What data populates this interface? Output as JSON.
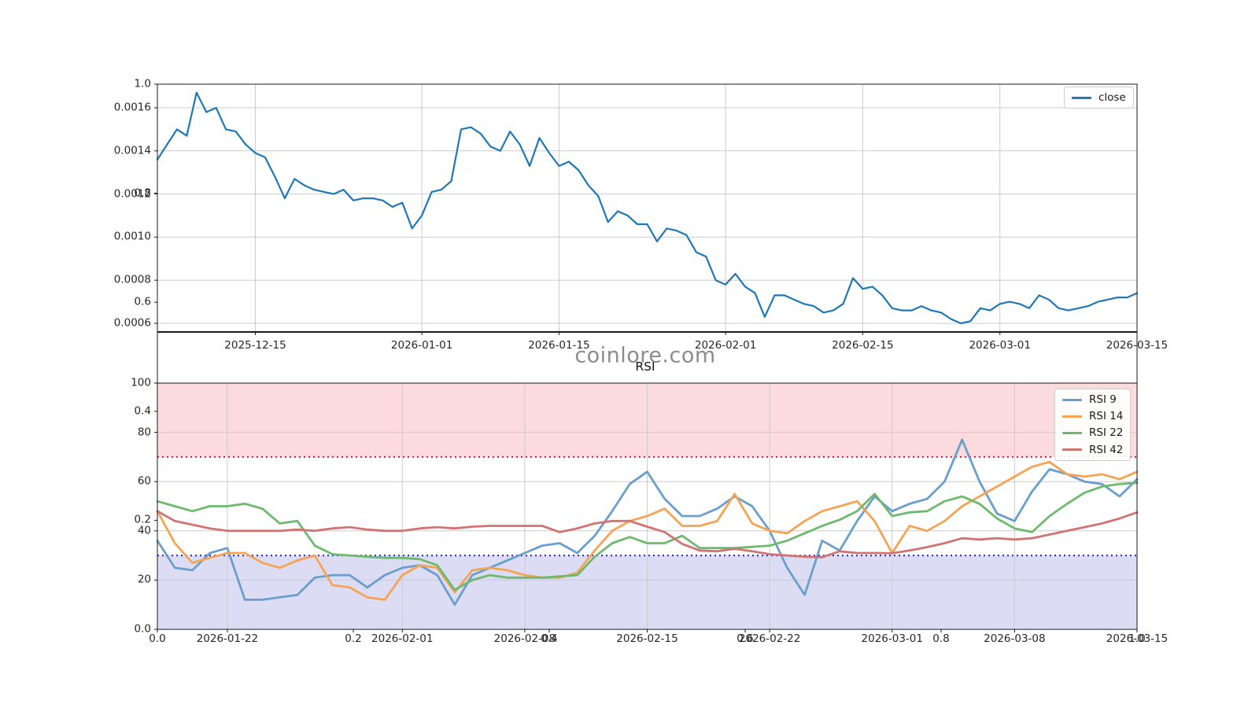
{
  "watermark": {
    "text": "coinlore.com"
  },
  "colors": {
    "close": "#1f77b4",
    "rsi9": "#6a9ecb",
    "rsi14": "#f5a455",
    "rsi22": "#6eb96e",
    "rsi42": "#d27373",
    "overbought_band": "#fbdbde",
    "oversold_band": "#dcdcf4",
    "overbought_line": "#dc143c",
    "oversold_line": "#2222dd",
    "grid": "#cccccc",
    "spine": "#1a1a1a"
  },
  "chart_data": [
    {
      "type": "line",
      "name": "price",
      "x_start": "2025-12-05",
      "x_end": "2026-03-15",
      "x_ticks": [
        {
          "label": "2025-12-15",
          "day": 10
        },
        {
          "label": "2026-01-01",
          "day": 27
        },
        {
          "label": "2026-01-15",
          "day": 41
        },
        {
          "label": "2026-02-01",
          "day": 58
        },
        {
          "label": "2026-02-15",
          "day": 72
        },
        {
          "label": "2026-03-01",
          "day": 86
        },
        {
          "label": "2026-03-15",
          "day": 100
        }
      ],
      "y_ticks": [
        {
          "label": "0.0016",
          "value": 0.0016
        },
        {
          "label": "0.0014",
          "value": 0.0014
        },
        {
          "label": "0.0012",
          "value": 0.0012
        },
        {
          "label": "0.0010",
          "value": 0.001
        },
        {
          "label": "0.0008",
          "value": 0.0008
        },
        {
          "label": "0.0006",
          "value": 0.0006
        }
      ],
      "ylim": [
        0.000552,
        0.001715
      ],
      "grid": true,
      "legend_position": "upper right",
      "series": [
        {
          "name": "close",
          "color": "#1f77b4",
          "values": [
            0.00136,
            0.00143,
            0.0015,
            0.00147,
            0.00167,
            0.00158,
            0.0016,
            0.0015,
            0.00149,
            0.00143,
            0.00139,
            0.00137,
            0.00128,
            0.00118,
            0.00127,
            0.00124,
            0.00122,
            0.00121,
            0.0012,
            0.00122,
            0.00117,
            0.00118,
            0.00118,
            0.00117,
            0.00114,
            0.00116,
            0.00104,
            0.0011,
            0.00121,
            0.00122,
            0.00126,
            0.0015,
            0.00151,
            0.00148,
            0.00142,
            0.0014,
            0.00149,
            0.00143,
            0.00133,
            0.00146,
            0.00139,
            0.00133,
            0.00135,
            0.00131,
            0.00124,
            0.00119,
            0.00107,
            0.00112,
            0.0011,
            0.00106,
            0.00106,
            0.00098,
            0.00104,
            0.00103,
            0.00101,
            0.00093,
            0.00091,
            0.0008,
            0.00078,
            0.00083,
            0.00077,
            0.00074,
            0.00063,
            0.00073,
            0.00073,
            0.00071,
            0.00069,
            0.00068,
            0.00065,
            0.00066,
            0.00069,
            0.00081,
            0.00076,
            0.00077,
            0.00073,
            0.00067,
            0.00066,
            0.00066,
            0.00068,
            0.00066,
            0.00065,
            0.00062,
            0.0006,
            0.00061,
            0.00067,
            0.00066,
            0.00069,
            0.0007,
            0.00069,
            0.00067,
            0.00073,
            0.00071,
            0.00067,
            0.00066,
            0.00067,
            0.00068,
            0.0007,
            0.00071,
            0.00072,
            0.00072,
            0.00074
          ]
        }
      ]
    },
    {
      "type": "line",
      "name": "rsi",
      "title": "RSI",
      "x_start": "2026-01-18",
      "x_end": "2026-03-15",
      "x_ticks": [
        {
          "label": "2026-01-22",
          "day": 4
        },
        {
          "label": "2026-02-01",
          "day": 14
        },
        {
          "label": "2026-02-08",
          "day": 21
        },
        {
          "label": "2026-02-15",
          "day": 28
        },
        {
          "label": "2026-02-22",
          "day": 35
        },
        {
          "label": "2026-03-01",
          "day": 42
        },
        {
          "label": "2026-03-08",
          "day": 49
        },
        {
          "label": "2026-03-15",
          "day": 56
        }
      ],
      "y_ticks": [
        {
          "label": "100",
          "value": 100
        },
        {
          "label": "80",
          "value": 80
        },
        {
          "label": "60",
          "value": 60
        },
        {
          "label": "40",
          "value": 40
        },
        {
          "label": "20",
          "value": 20
        }
      ],
      "ylim": [
        0,
        100
      ],
      "grid": true,
      "legend_position": "upper right",
      "bands": [
        {
          "from": 70,
          "to": 100,
          "color": "#fbdbde",
          "name": "overbought"
        },
        {
          "from": 0,
          "to": 30,
          "color": "#dcdcf4",
          "name": "oversold"
        }
      ],
      "thresholds": [
        {
          "value": 70,
          "color": "#dc143c",
          "style": "dotted",
          "name": "overbought-level"
        },
        {
          "value": 30,
          "color": "#2222dd",
          "style": "dotted",
          "name": "oversold-level"
        }
      ],
      "series": [
        {
          "name": "RSI 9",
          "color": "#6a9ecb",
          "values": [
            36,
            25,
            24,
            31,
            33,
            12,
            12,
            13,
            14,
            21,
            22,
            22,
            17,
            22,
            25,
            26,
            22,
            10,
            22,
            25,
            28,
            31,
            34,
            35,
            31,
            38,
            48,
            59,
            64,
            53,
            46,
            46,
            49,
            54,
            50,
            40,
            25,
            14,
            36,
            32,
            44,
            54,
            48,
            51,
            53,
            60,
            77,
            60,
            47,
            44,
            56,
            65,
            63,
            60,
            59,
            54,
            61
          ]
        },
        {
          "name": "RSI 14",
          "color": "#f5a455",
          "values": [
            48,
            35,
            27,
            29,
            31,
            31,
            27,
            25,
            28,
            30,
            18,
            17,
            13,
            12,
            22,
            26,
            25,
            15,
            24,
            25,
            24,
            22,
            21,
            21,
            23,
            32,
            40,
            44,
            46,
            49,
            42,
            42,
            44,
            55,
            43,
            40,
            39,
            44,
            48,
            50,
            52,
            44,
            31,
            42,
            40,
            44,
            50,
            54,
            58,
            62,
            66,
            68,
            63,
            62,
            63,
            61,
            64
          ]
        },
        {
          "name": "RSI 22",
          "color": "#6eb96e",
          "values": [
            52,
            50,
            48,
            50,
            50,
            51,
            49,
            43,
            44,
            34,
            30.5,
            30,
            29.5,
            29,
            29,
            28.5,
            26,
            16,
            20,
            22,
            21,
            21,
            21,
            21.5,
            22,
            29.5,
            35,
            37.5,
            35,
            35,
            38,
            33,
            33,
            33,
            33.5,
            34,
            36,
            39,
            42,
            44.5,
            48,
            55,
            46,
            47.5,
            48,
            52,
            54,
            51,
            45,
            41,
            39.5,
            46,
            51,
            55.5,
            58,
            59,
            59.5
          ]
        },
        {
          "name": "RSI 42",
          "color": "#d27373",
          "values": [
            48,
            44,
            42.5,
            41,
            40,
            40,
            40,
            40,
            40.5,
            40,
            41,
            41.5,
            40.5,
            40,
            40,
            41,
            41.5,
            41,
            41.7,
            42,
            42,
            42,
            42,
            39.5,
            41,
            43,
            44,
            44,
            41.7,
            39.5,
            34.7,
            32,
            31.7,
            32.7,
            31.7,
            30.5,
            30,
            29.5,
            29.3,
            31.7,
            31,
            31,
            30.9,
            32,
            33.4,
            35,
            37,
            36.5,
            37,
            36.5,
            37,
            38.5,
            40,
            41.5,
            43,
            45,
            47.5
          ]
        }
      ]
    }
  ],
  "overlay_axis": {
    "x_ticks": [
      "0.0",
      "0.2",
      "0.4",
      "0.6",
      "0.8",
      "1.0"
    ],
    "y_ticks": [
      "0.0",
      "0.2",
      "0.4",
      "0.6",
      "0.8",
      "1.0"
    ]
  }
}
